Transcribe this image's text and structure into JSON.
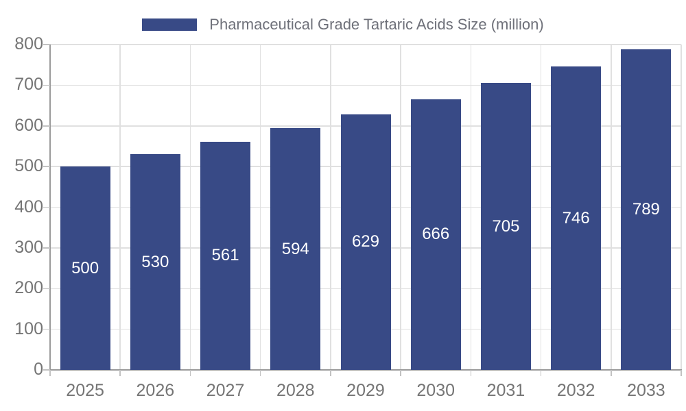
{
  "legend": {
    "label": "Pharmaceutical Grade Tartaric Acids Size (million)"
  },
  "chart_data": {
    "type": "bar",
    "title": "Pharmaceutical Grade Tartaric Acids Size (million)",
    "categories": [
      "2025",
      "2026",
      "2027",
      "2028",
      "2029",
      "2030",
      "2031",
      "2032",
      "2033"
    ],
    "values": [
      500,
      530,
      561,
      594,
      629,
      666,
      705,
      746,
      789
    ],
    "xlabel": "",
    "ylabel": "",
    "ylim": [
      0,
      800
    ],
    "ytick_step": 100,
    "grid": true,
    "legend_position": "top",
    "value_labels": "inside-center",
    "colors": {
      "bar": "#384A86",
      "grid_line": "#e0e0e0",
      "axis_line": "#9a9a9a",
      "tick_mark": "#c2c2c2",
      "tick_label": "#757575",
      "value_label": "#ffffff",
      "legend_text": "#6e7079"
    }
  }
}
